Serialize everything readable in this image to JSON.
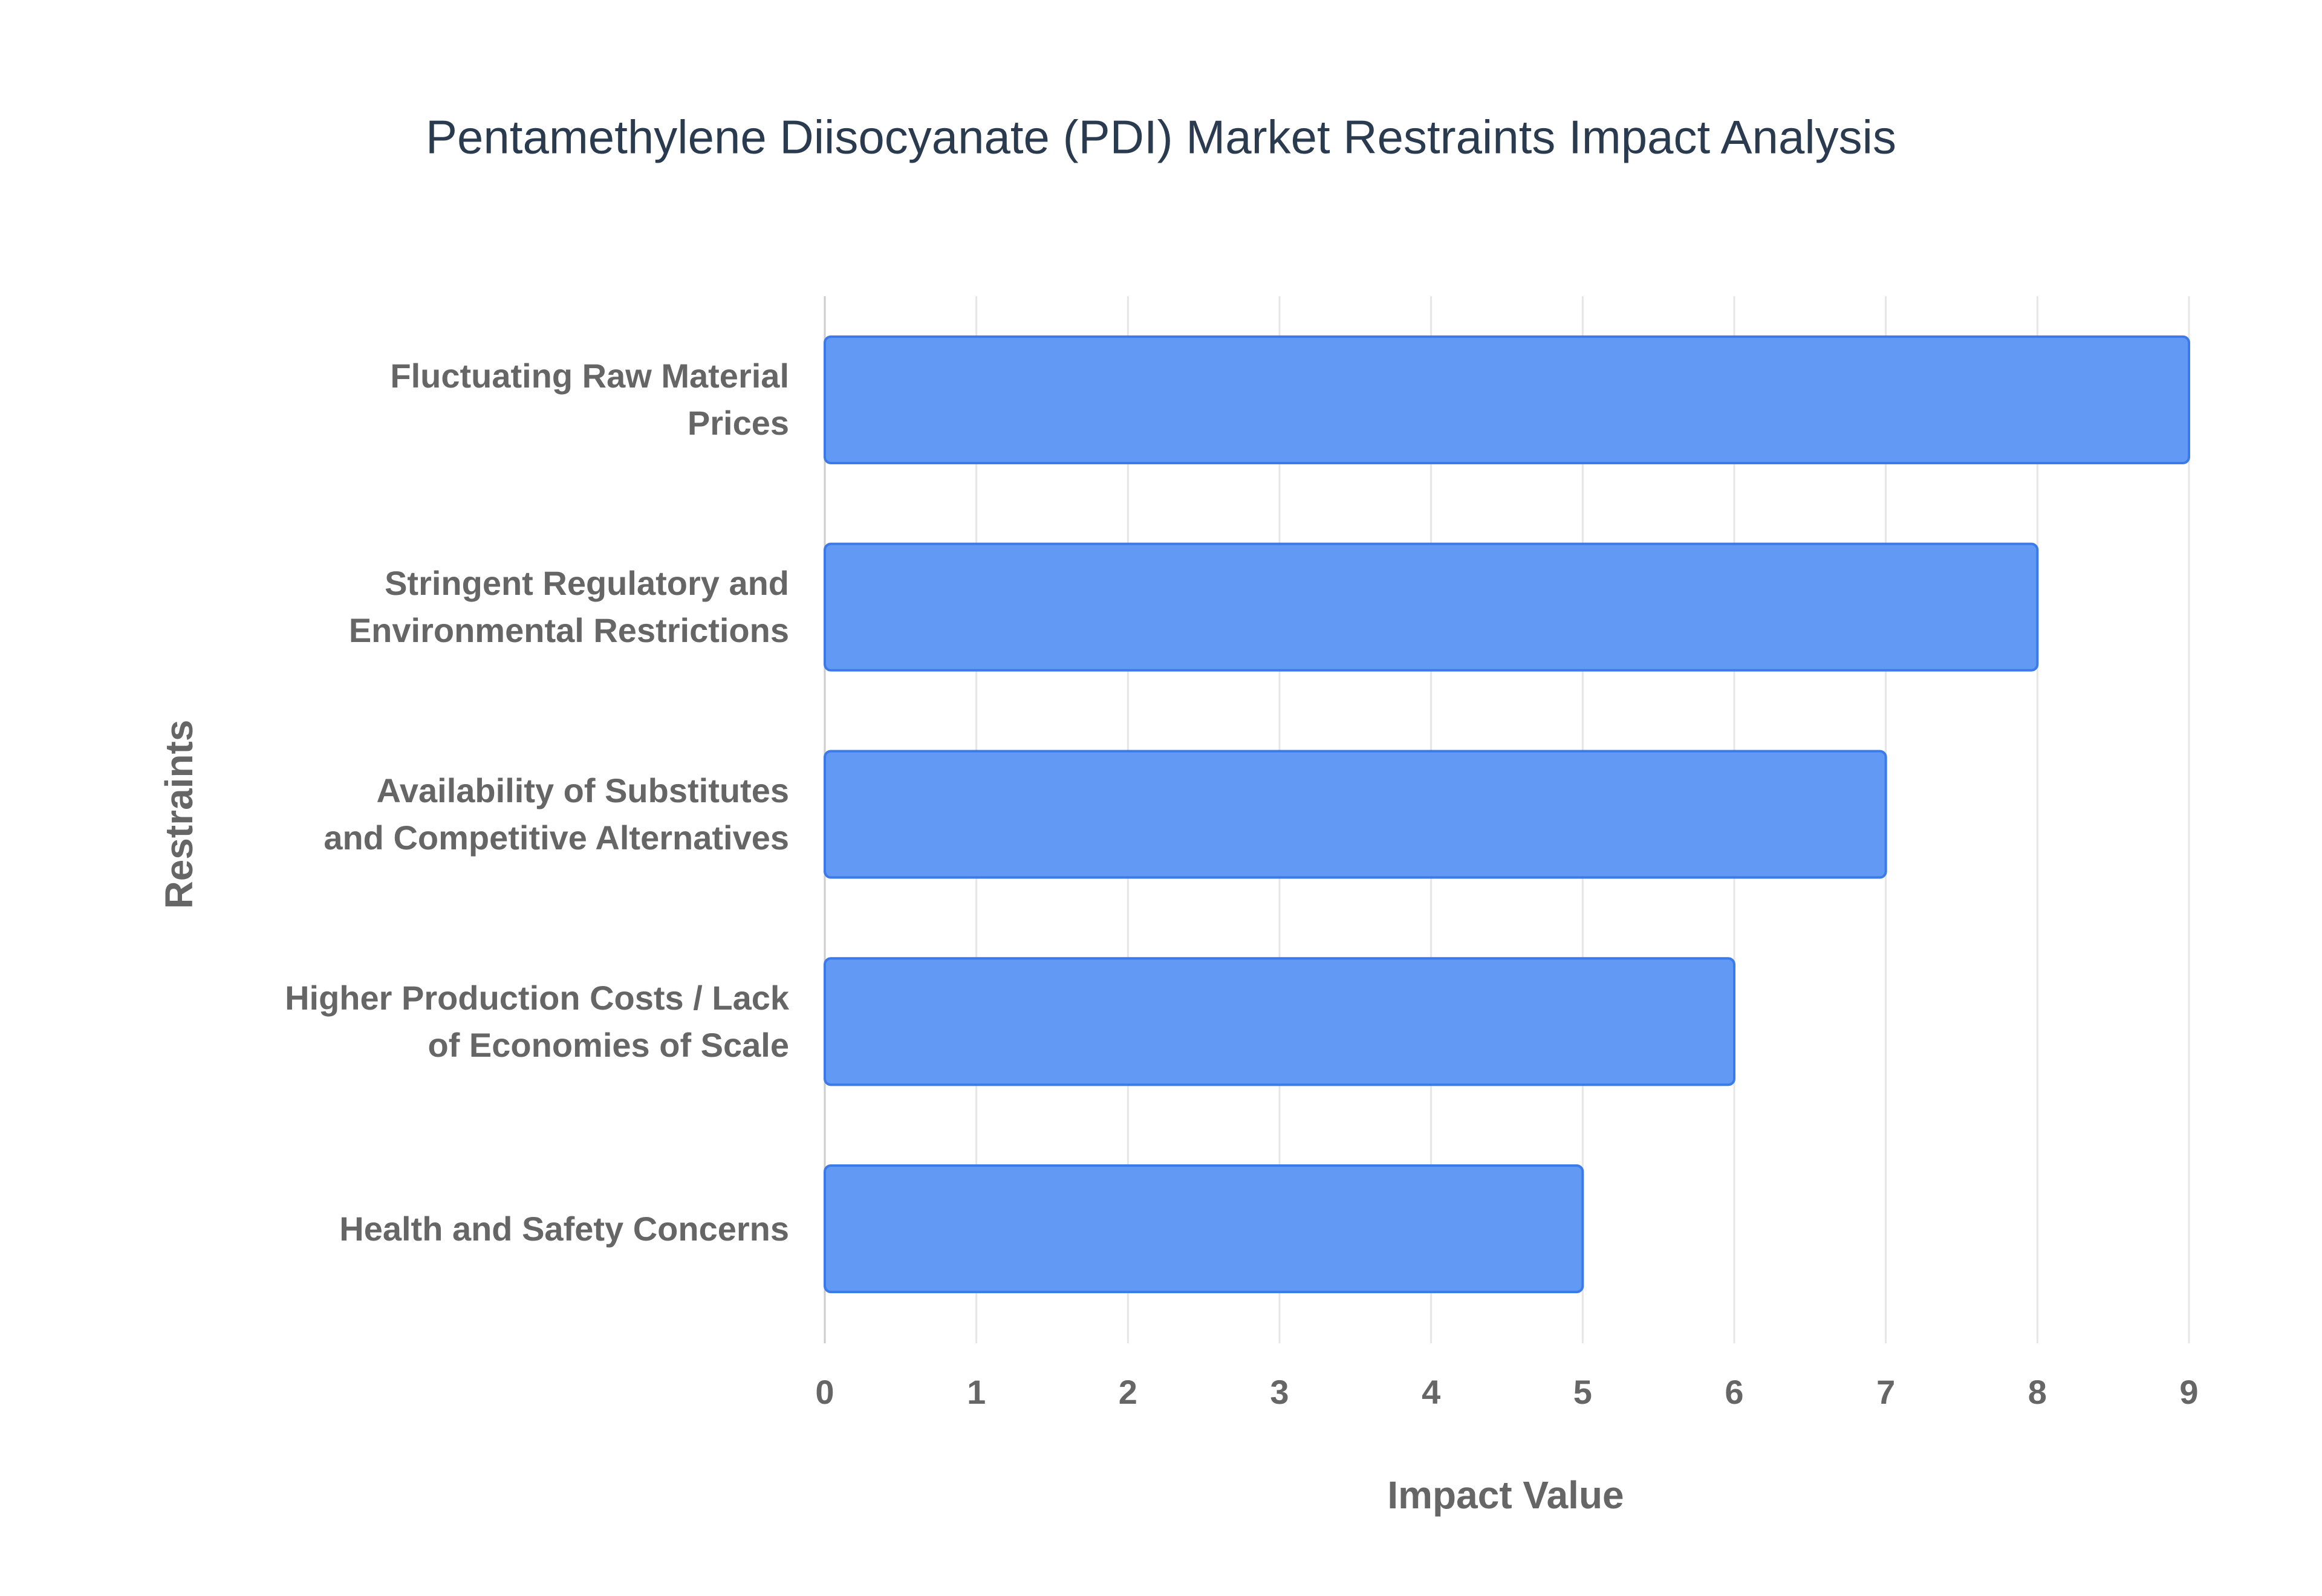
{
  "chart_data": {
    "type": "barh",
    "title": "Pentamethylene Diisocyanate (PDI) Market Restraints Impact Analysis",
    "xlabel": "Impact Value",
    "ylabel": "Restraints",
    "categories": [
      "Fluctuating Raw Material\nPrices",
      "Stringent Regulatory and\nEnvironmental Restrictions",
      "Availability of Substitutes\nand Competitive Alternatives",
      "Higher Production Costs / Lack\nof Economies of Scale",
      "Health and Safety Concerns"
    ],
    "values": [
      9,
      8,
      7,
      6,
      5
    ],
    "color": "#6199f5",
    "border_color": "#3b7ae8",
    "xlim": [
      0,
      9
    ],
    "xticks": [
      0,
      1,
      2,
      3,
      4,
      5,
      6,
      7,
      8,
      9
    ],
    "grid": true
  }
}
